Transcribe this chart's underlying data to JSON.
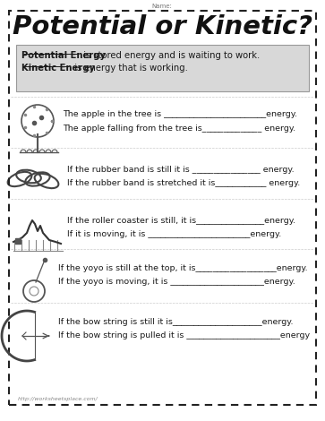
{
  "title": "Potential or Kinetic?",
  "name_label": "Name:",
  "bg_color": "#ffffff",
  "border_color": "#222222",
  "def1_bold": "Potential Energy",
  "def1_rest": " is stored energy and is waiting to work.",
  "def2_bold": "Kinetic Energy",
  "def2_rest": " is energy that is working.",
  "questions": [
    "The apple in the tree is ________________________energy.",
    "The apple falling from the tree is______________ energy.",
    "If the rubber band is still it is ________________ energy.",
    "If the rubber band is stretched it is____________ energy.",
    "If the roller coaster is still, it is________________energy.",
    "If it is moving, it is ________________________energy.",
    "If the yoyo is still at the top, it is___________________energy.",
    "If the yoyo is moving, it is ______________________energy.",
    "If the bow string is still it is_____________________energy.",
    "If the bow string is pulled it is ______________________energy"
  ],
  "footer": "http://worksheetsplace.com/",
  "font_color": "#1a1a1a",
  "title_color": "#111111"
}
